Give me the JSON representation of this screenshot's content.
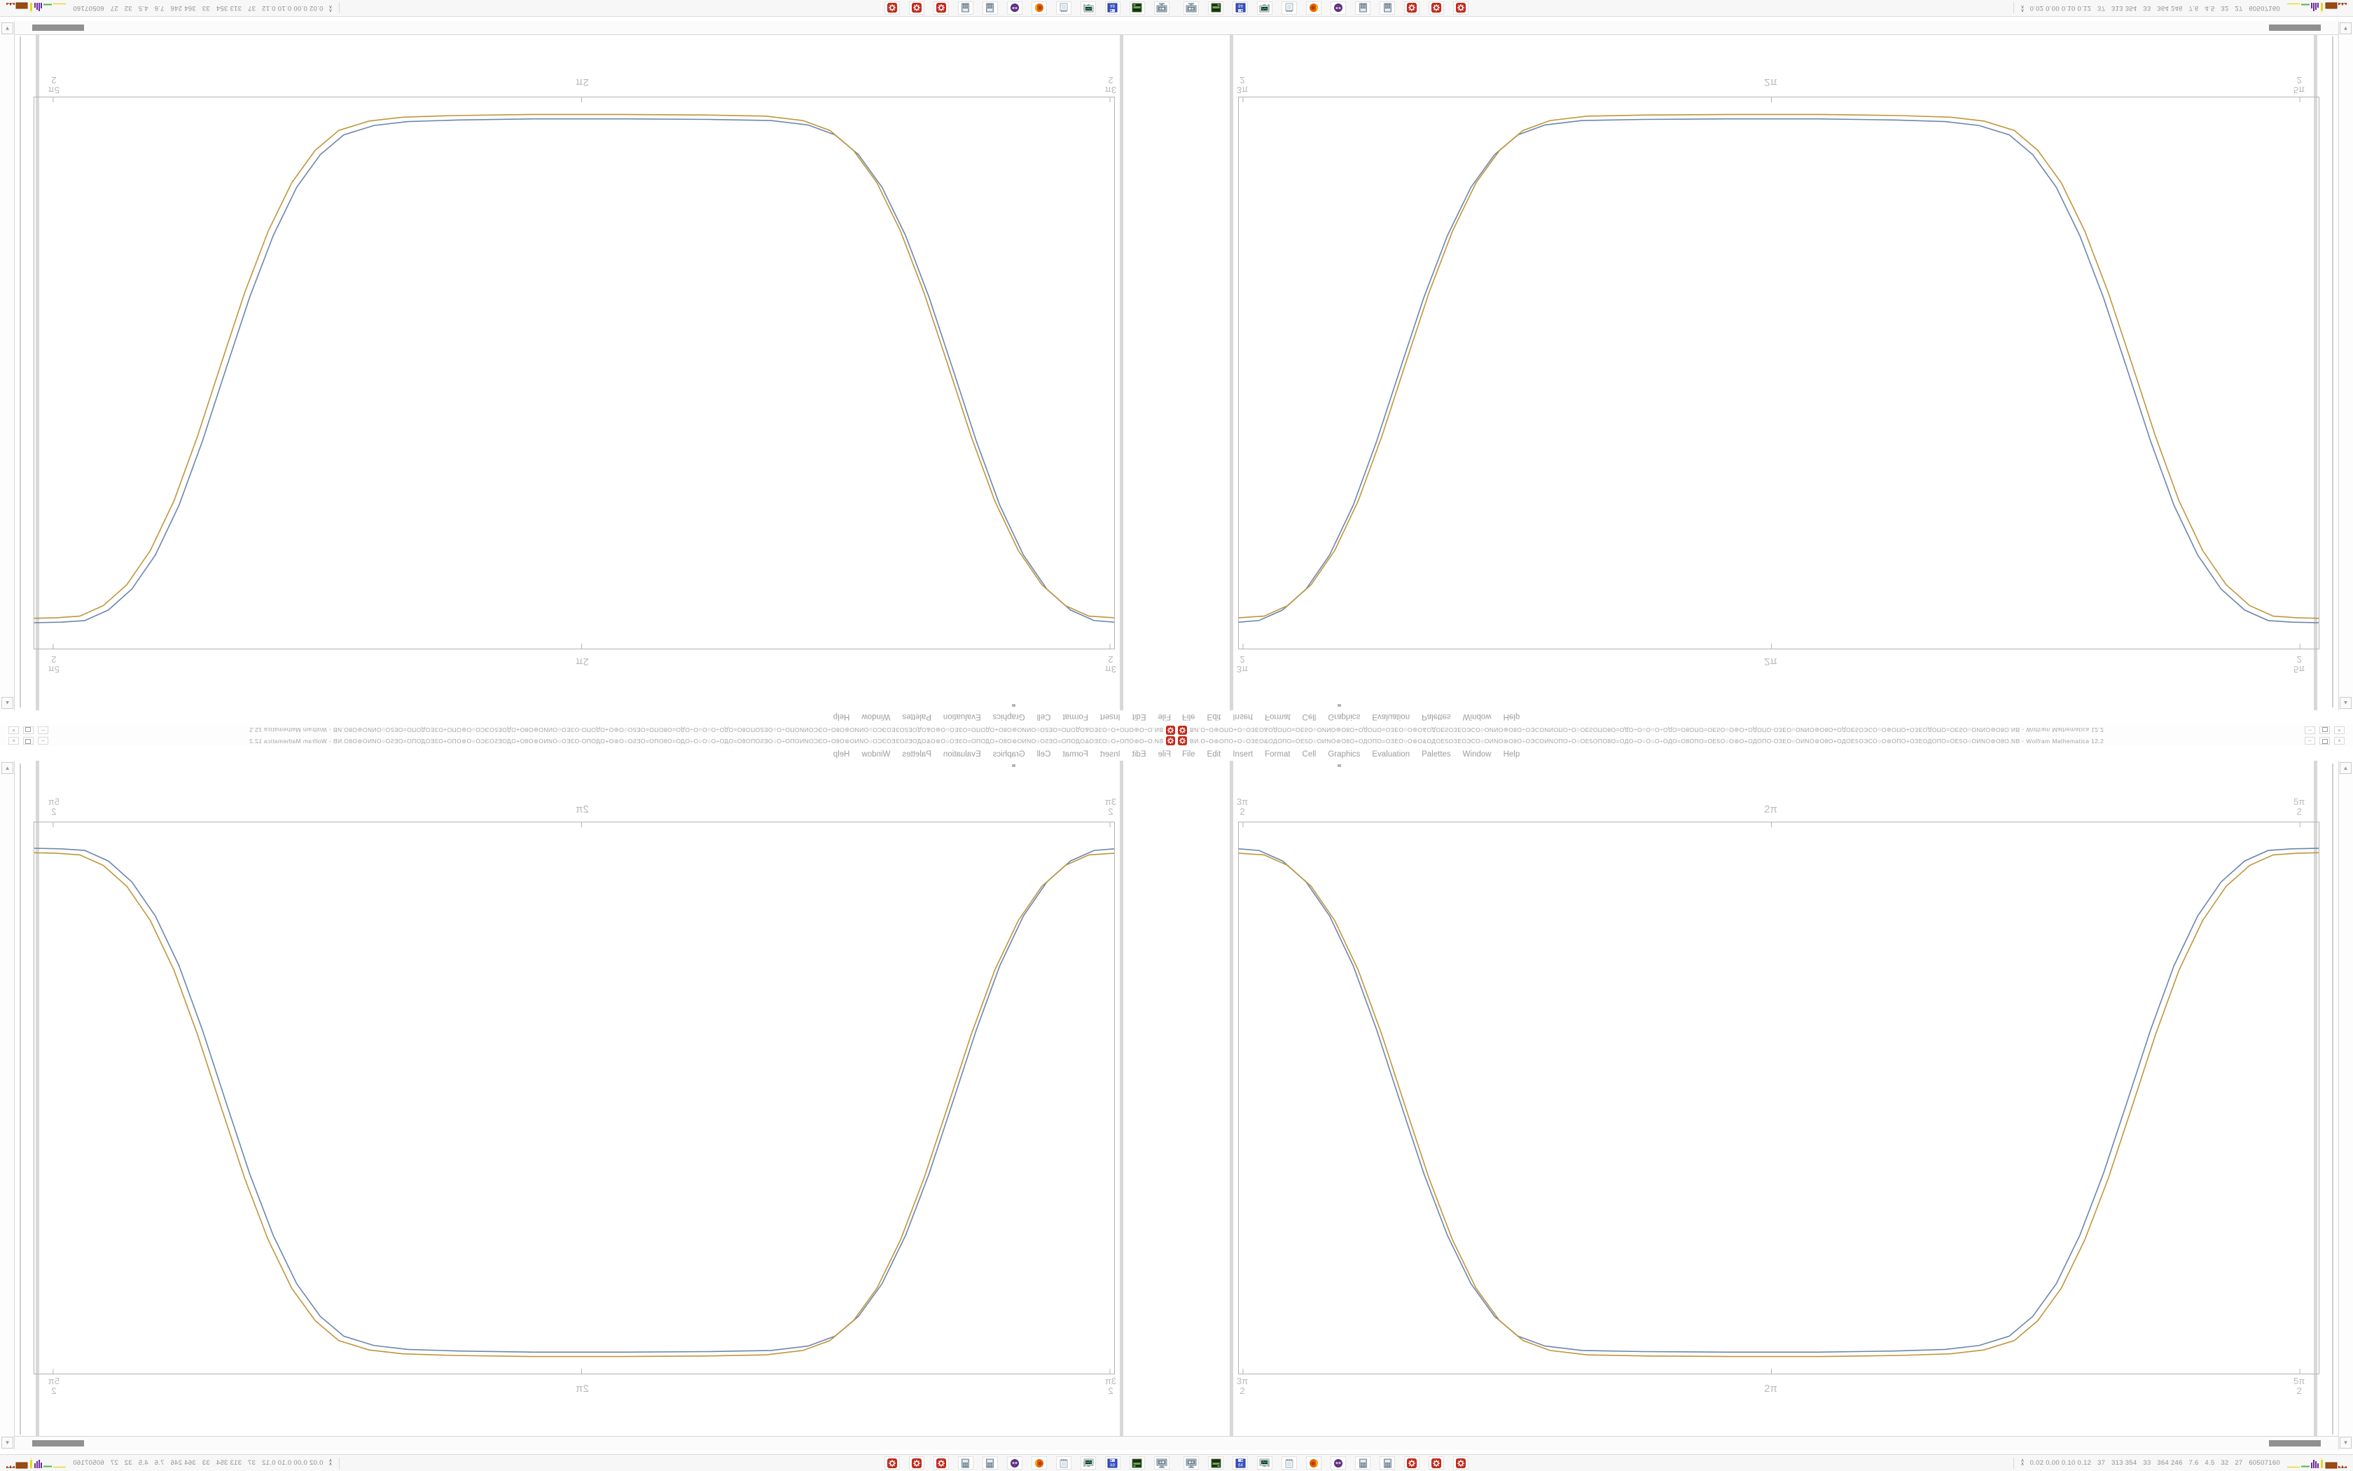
{
  "app": {
    "title": "ВИ.О÷О⊚ОПО+О○ОЗЕО&ОДОПО=ОЕ5О○ОИNО⊚О8О+ОДОПО=ОЗЕО○О⊚О&ОДОЕ5ОЗЕОЭСО○ОИNО⊚О8О÷ОЭСОИNОПО÷О○ОЕ5ОПО8О=ОДО÷О○О○О÷ОДО=О8ОПО=ОЕ5О○О⊚О+ОДОПО-ОЗЕО○ОИNО⊚О8О+ОДОЕ5ОЭСО○О⊚ОПО+ОЗЕОДОПО=ОЕ5О○ОИNО⊚О8О.NB - Wolfram Mathematica 12.2",
    "window_buttons": {
      "minimize": "–",
      "close": "×"
    }
  },
  "menu": {
    "items": [
      "File",
      "Edit",
      "Insert",
      "Format",
      "Cell",
      "Graphics",
      "Evaluation",
      "Palettes",
      "Window",
      "Help"
    ]
  },
  "notebook": {
    "scroll_up": "▲",
    "scroll_down": "▼"
  },
  "chart_data": {
    "type": "line",
    "title": "",
    "xlabel": "",
    "ylabel": "",
    "frame": true,
    "grid": false,
    "legend": "none",
    "xlim": [
      4.7,
      7.91
    ],
    "ylim": [
      0,
      1
    ],
    "x_ticks": [
      {
        "value": 4.71239,
        "num": "3π",
        "den": "2",
        "plain": ""
      },
      {
        "value": 6.28319,
        "num": "",
        "den": "",
        "plain": "2π"
      },
      {
        "value": 7.85398,
        "num": "5π",
        "den": "2",
        "plain": ""
      }
    ],
    "description": "Two nearly identical smoothed square-wave curves: high plateau near y=0.95 at both sides, sigmoid drop after 3π/2, flat minimum near y=0.04 around 2π, sigmoid rise before 5π/2",
    "series": [
      {
        "name": "series-1-blue",
        "color": "#6c86ae",
        "points": [
          [
            4.7,
            0.952
          ],
          [
            4.76,
            0.949
          ],
          [
            4.83,
            0.93
          ],
          [
            4.9,
            0.892
          ],
          [
            4.97,
            0.83
          ],
          [
            5.04,
            0.74
          ],
          [
            5.11,
            0.623
          ],
          [
            5.18,
            0.492
          ],
          [
            5.25,
            0.363
          ],
          [
            5.32,
            0.251
          ],
          [
            5.39,
            0.163
          ],
          [
            5.46,
            0.104
          ],
          [
            5.53,
            0.068
          ],
          [
            5.61,
            0.05
          ],
          [
            5.72,
            0.042
          ],
          [
            5.9,
            0.04
          ],
          [
            6.15,
            0.039
          ],
          [
            6.42,
            0.039
          ],
          [
            6.65,
            0.041
          ],
          [
            6.8,
            0.044
          ],
          [
            6.9,
            0.051
          ],
          [
            6.99,
            0.068
          ],
          [
            7.06,
            0.104
          ],
          [
            7.13,
            0.163
          ],
          [
            7.2,
            0.251
          ],
          [
            7.27,
            0.363
          ],
          [
            7.34,
            0.492
          ],
          [
            7.41,
            0.623
          ],
          [
            7.48,
            0.74
          ],
          [
            7.55,
            0.83
          ],
          [
            7.62,
            0.892
          ],
          [
            7.69,
            0.93
          ],
          [
            7.76,
            0.949
          ],
          [
            7.83,
            0.952
          ],
          [
            7.91,
            0.953
          ]
        ]
      },
      {
        "name": "series-2-gold",
        "color": "#c0953b",
        "points": [
          [
            4.7,
            0.944
          ],
          [
            4.775,
            0.941
          ],
          [
            4.845,
            0.922
          ],
          [
            4.915,
            0.884
          ],
          [
            4.985,
            0.822
          ],
          [
            5.055,
            0.732
          ],
          [
            5.125,
            0.615
          ],
          [
            5.195,
            0.484
          ],
          [
            5.265,
            0.355
          ],
          [
            5.335,
            0.243
          ],
          [
            5.405,
            0.155
          ],
          [
            5.475,
            0.096
          ],
          [
            5.545,
            0.06
          ],
          [
            5.625,
            0.042
          ],
          [
            5.735,
            0.034
          ],
          [
            5.915,
            0.032
          ],
          [
            6.165,
            0.031
          ],
          [
            6.435,
            0.031
          ],
          [
            6.665,
            0.033
          ],
          [
            6.815,
            0.036
          ],
          [
            6.915,
            0.043
          ],
          [
            7.005,
            0.06
          ],
          [
            7.075,
            0.096
          ],
          [
            7.145,
            0.155
          ],
          [
            7.215,
            0.243
          ],
          [
            7.285,
            0.355
          ],
          [
            7.355,
            0.484
          ],
          [
            7.425,
            0.615
          ],
          [
            7.495,
            0.732
          ],
          [
            7.565,
            0.822
          ],
          [
            7.635,
            0.884
          ],
          [
            7.705,
            0.922
          ],
          [
            7.775,
            0.941
          ],
          [
            7.845,
            0.944
          ],
          [
            7.91,
            0.945
          ]
        ]
      }
    ]
  },
  "taskbar": {
    "launcher_icons": [
      "system-monitor",
      "disk-drive",
      "floppy-64",
      "terminal-monitor",
      "notepad",
      "firefox",
      "owl-app",
      "calculator",
      "calculator-2",
      "mathematica-1",
      "mathematica-2",
      "mathematica-3"
    ],
    "floppy_label": "64",
    "tray": {
      "expand_chevron": "∧",
      "stats": "0.02 0.00 0.10 0.12   37   313 354   33   364 246   7.6   4.5   32   27   60507160",
      "graphs": [
        "network-graph-yellow",
        "network-graph-green",
        "cpu-graph-purple",
        "load-graph-yellow",
        "memory-graph-brown",
        "temp-graph-red-green"
      ]
    }
  }
}
